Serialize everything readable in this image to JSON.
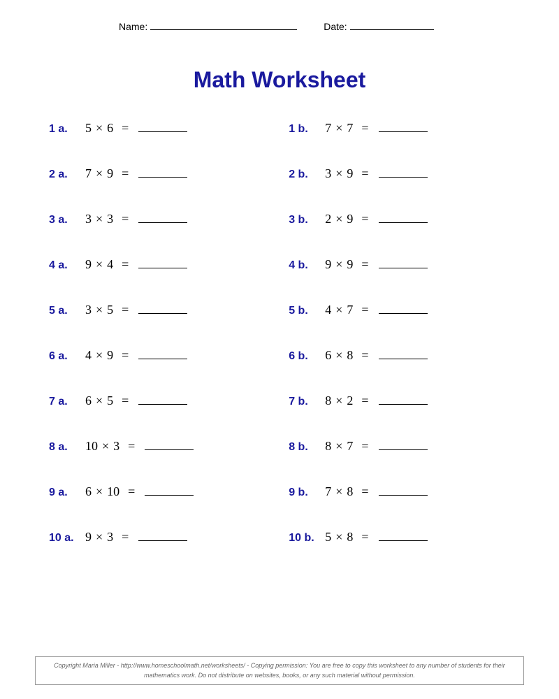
{
  "header": {
    "name_label": "Name:",
    "date_label": "Date:"
  },
  "title": {
    "text": "Math Worksheet",
    "color": "#1a1a9e",
    "fontsize": 32
  },
  "colors": {
    "label_color": "#1a1a9e",
    "expression_color": "#000000",
    "background": "#ffffff"
  },
  "operator": "×",
  "equals": "=",
  "problems": [
    {
      "left": {
        "label": "1 a.",
        "a": "5",
        "b": "6"
      },
      "right": {
        "label": "1 b.",
        "a": "7",
        "b": "7"
      }
    },
    {
      "left": {
        "label": "2 a.",
        "a": "7",
        "b": "9"
      },
      "right": {
        "label": "2 b.",
        "a": "3",
        "b": "9"
      }
    },
    {
      "left": {
        "label": "3 a.",
        "a": "3",
        "b": "3"
      },
      "right": {
        "label": "3 b.",
        "a": "2",
        "b": "9"
      }
    },
    {
      "left": {
        "label": "4 a.",
        "a": "9",
        "b": "4"
      },
      "right": {
        "label": "4 b.",
        "a": "9",
        "b": "9"
      }
    },
    {
      "left": {
        "label": "5 a.",
        "a": "3",
        "b": "5"
      },
      "right": {
        "label": "5 b.",
        "a": "4",
        "b": "7"
      }
    },
    {
      "left": {
        "label": "6 a.",
        "a": "4",
        "b": "9"
      },
      "right": {
        "label": "6 b.",
        "a": "6",
        "b": "8"
      }
    },
    {
      "left": {
        "label": "7 a.",
        "a": "6",
        "b": "5"
      },
      "right": {
        "label": "7 b.",
        "a": "8",
        "b": "2"
      }
    },
    {
      "left": {
        "label": "8 a.",
        "a": "10",
        "b": "3"
      },
      "right": {
        "label": "8 b.",
        "a": "8",
        "b": "7"
      }
    },
    {
      "left": {
        "label": "9 a.",
        "a": "6",
        "b": "10"
      },
      "right": {
        "label": "9 b.",
        "a": "7",
        "b": "8"
      }
    },
    {
      "left": {
        "label": "10 a.",
        "a": "9",
        "b": "3"
      },
      "right": {
        "label": "10 b.",
        "a": "5",
        "b": "8"
      }
    }
  ],
  "footer": {
    "text": "Copyright Maria Miller - http://www.homeschoolmath.net/worksheets/ - Copying permission: You are free to copy this worksheet to any number of students for their mathematics work. Do not distribute on websites, books, or any such material without permission."
  }
}
